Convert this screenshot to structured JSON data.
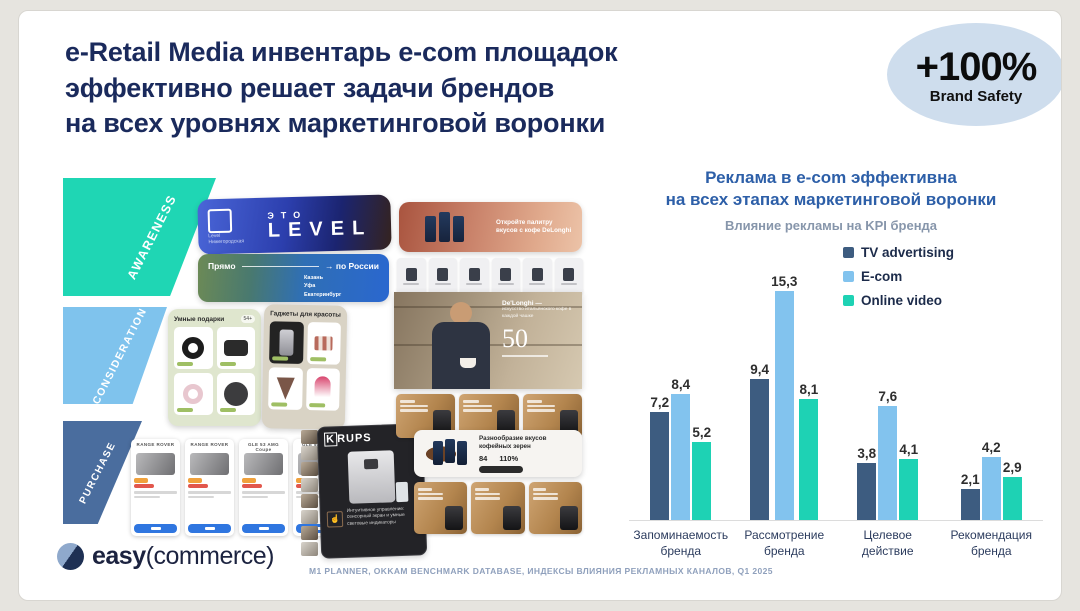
{
  "slide": {
    "title_lines": [
      "e-Retail Media инвентарь e-com площадок",
      "эффективно решает задачи брендов",
      "на всех уровнях маркетинговой воронки"
    ],
    "badge": {
      "value": "+100%",
      "label": "Brand Safety"
    },
    "source": "M1 PLANNER, OKKAM BENCHMARK DATABASE, ИНДЕКСЫ ВЛИЯНИЯ РЕКЛАМНЫХ КАНАЛОВ, Q1 2025",
    "logo": {
      "part1": "easy",
      "part2": "(commerce)"
    }
  },
  "funnel": {
    "stages": [
      {
        "label": "AWARENESS",
        "color": "#1fd6b4"
      },
      {
        "label": "CONSIDERATION",
        "color": "#7fc3ed"
      },
      {
        "label": "PURCHASE",
        "color": "#4a6d9e"
      }
    ]
  },
  "collage": {
    "level_banner": {
      "logo": "Level",
      "logo_sub": "Нижегородская",
      "headline_small": "ЭТО",
      "headline": "LEVEL"
    },
    "russia_banner": {
      "title": "Прямо",
      "destination": "по России",
      "cities": [
        "Казань",
        "Уфа",
        "Екатеринбург"
      ]
    },
    "gifts_card": {
      "title": "Умные подарки",
      "count_pill": "54+"
    },
    "beauty_card": {
      "title": "Гаджеты для красоты"
    },
    "car_cards": [
      {
        "title": "RANGE ROVER"
      },
      {
        "title": "RANGE ROVER"
      },
      {
        "title": "GLE 53 AMG Coupe"
      },
      {
        "title": "GLE 53 AMG Coupe"
      }
    ],
    "krups_card": {
      "brand": "KRUPS",
      "caption": "Интуитивное управление: сенсорный экран и умные световые индикаторы"
    },
    "delonghi_banner": {
      "text": "Откройте палитру вкусов с кофе DeLonghi"
    },
    "barista_card": {
      "brand_line": "De'Longhi —",
      "sub_line": "искусство итальянского кофе в каждой чашке",
      "big_number": "50"
    },
    "variety_banner": {
      "title": "Разнообразие вкусов кофейных зерен",
      "stat1": "84",
      "stat2": "110%"
    }
  },
  "chart_data": {
    "type": "bar",
    "title_lines": [
      "Реклама в e-com эффективна",
      "на всех этапах маркетинговой воронки"
    ],
    "subtitle": "Влияние рекламы на KPI бренда",
    "categories": [
      [
        "Запоминаемость",
        "бренда"
      ],
      [
        "Рассмотрение",
        "бренда"
      ],
      [
        "Целевое",
        "действие"
      ],
      [
        "Рекомендация",
        "бренда"
      ]
    ],
    "series": [
      {
        "name": "TV advertising",
        "color": "#3d5c80",
        "values": [
          7.2,
          9.4,
          3.8,
          2.1
        ]
      },
      {
        "name": "E-com",
        "color": "#82c3ee",
        "values": [
          8.4,
          15.3,
          7.6,
          4.2
        ]
      },
      {
        "name": "Online video",
        "color": "#1ed2b4",
        "values": [
          5.2,
          8.1,
          4.1,
          2.9
        ]
      }
    ],
    "ylim": [
      0,
      16
    ],
    "grid": false,
    "legend_position": "top-right",
    "value_format": "comma-decimal"
  }
}
